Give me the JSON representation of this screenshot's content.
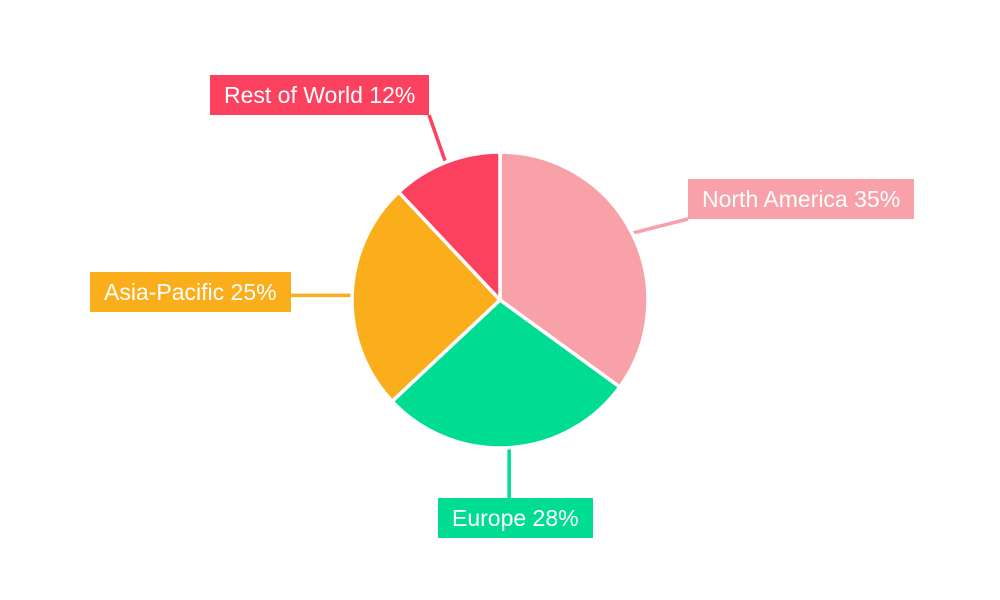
{
  "chart_data": {
    "type": "pie",
    "title": "",
    "categories": [
      "North America",
      "Europe",
      "Asia-Pacific",
      "Rest of World"
    ],
    "values": [
      35,
      28,
      25,
      12
    ],
    "unit": "%",
    "display_labels": [
      "North America 35%",
      "Europe 28%",
      "Asia-Pacific 25%",
      "Rest of World 12%"
    ],
    "colors": [
      "#F8A1A9",
      "#00DC92",
      "#FBAE1B",
      "#FC415E"
    ],
    "start_angle_deg": 0,
    "direction": "clockwise",
    "legend_position": "none",
    "background": "#FFFFFF"
  }
}
